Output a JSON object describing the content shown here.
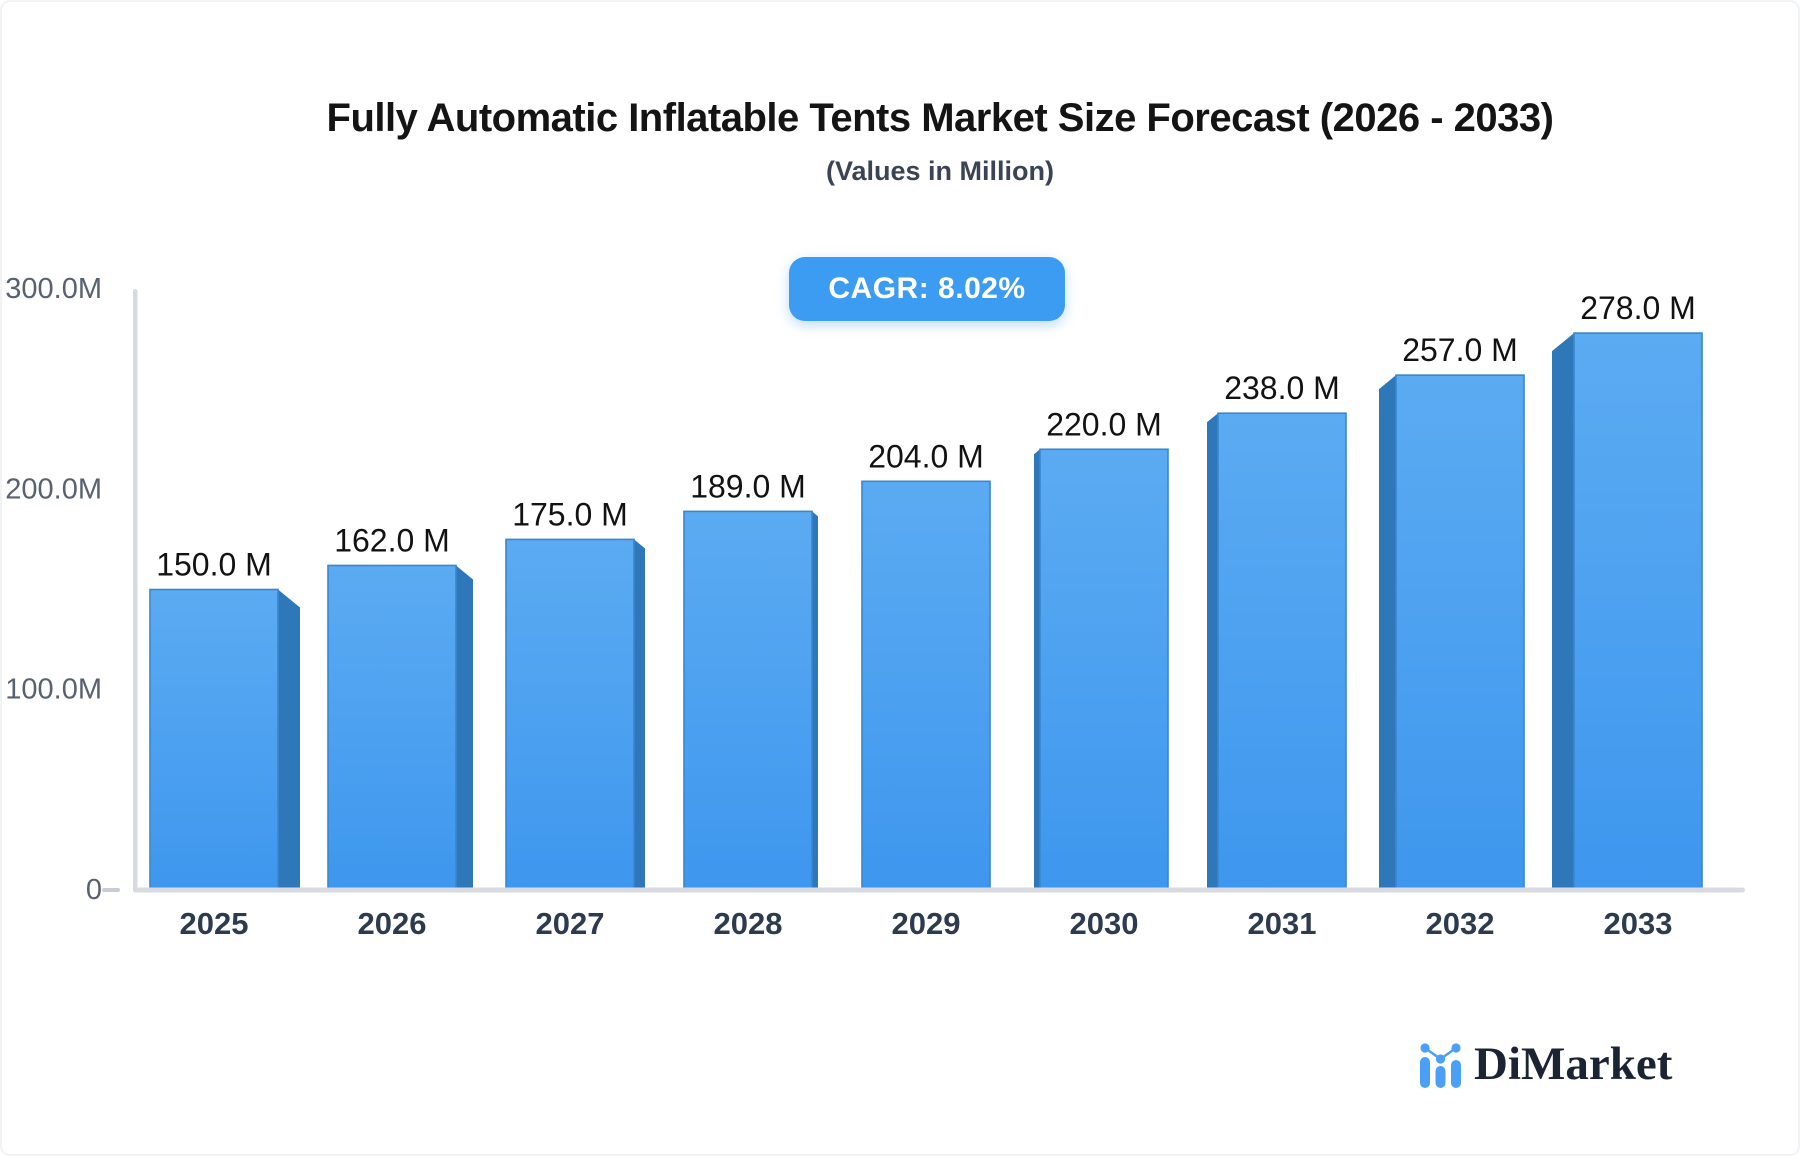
{
  "chart_data": {
    "type": "bar",
    "title": "Fully Automatic Inflatable Tents Market Size Forecast (2026 - 2033)",
    "subtitle": "(Values in Million)",
    "cagr_label": "CAGR: 8.02%",
    "categories": [
      "2025",
      "2026",
      "2027",
      "2028",
      "2029",
      "2030",
      "2031",
      "2032",
      "2033"
    ],
    "values": [
      150,
      162,
      175,
      189,
      204,
      220,
      238,
      257,
      278
    ],
    "value_labels": [
      "150.0 M",
      "162.0 M",
      "175.0 M",
      "189.0 M",
      "204.0 M",
      "220.0 M",
      "238.0 M",
      "257.0 M",
      "278.0 M"
    ],
    "y_ticks": [
      "0",
      "100.0M",
      "200.0M",
      "300.0M"
    ],
    "y_tick_values": [
      0,
      100,
      200,
      300
    ],
    "ylim": [
      0,
      300
    ],
    "xlabel": "",
    "ylabel": "",
    "grid": "off",
    "legend": "none",
    "style": "3d-perspective-bars"
  },
  "colors": {
    "bar_front_top": "#5babf2",
    "bar_front_bottom": "#3e97ee",
    "bar_stroke": "#3a86ce",
    "bar_side": "#2e78ba",
    "axis": "#d7dbe1",
    "tick_dash": "#c7ccd4",
    "badge_bg": "#3b9cf2",
    "badge_text": "#ffffff",
    "title_text": "#141414",
    "subtitle_text": "#3b4454",
    "value_label_text": "#121212",
    "x_label_text": "#2d3b4f",
    "y_label_text": "#58626f",
    "logo_icon": "#4aa0f5",
    "logo_text": "#1b2433"
  },
  "logo": {
    "text": "DiMarket",
    "icon": "bar-chart-logo-icon"
  }
}
